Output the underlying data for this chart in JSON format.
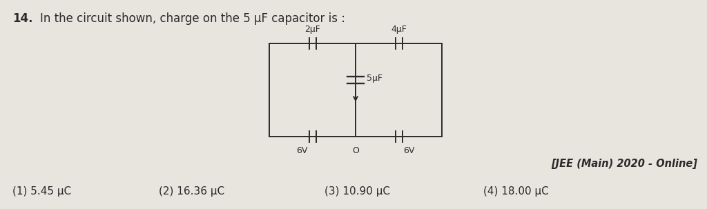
{
  "title_num": "14.",
  "title_text": "In the circuit shown, charge on the 5 μF capacitor is :",
  "circuit": {
    "cap_2uF_label": "2μF",
    "cap_4uF_label": "4μF",
    "cap_5uF_label": "5μF",
    "cap_6V_left_label": "6V",
    "cap_6V_right_label": "6V",
    "center_label": "O"
  },
  "options": [
    "(1) 5.45 μC",
    "(2) 16.36 μC",
    "(3) 10.90 μC",
    "(4) 18.00 μC"
  ],
  "source": "[JEE (Main) 2020 - Online]",
  "bg_color": "#e8e4de",
  "text_color": "#2a2a2a",
  "line_color": "#2a2a2a",
  "title_fontsize": 12,
  "option_fontsize": 11,
  "source_fontsize": 10.5
}
